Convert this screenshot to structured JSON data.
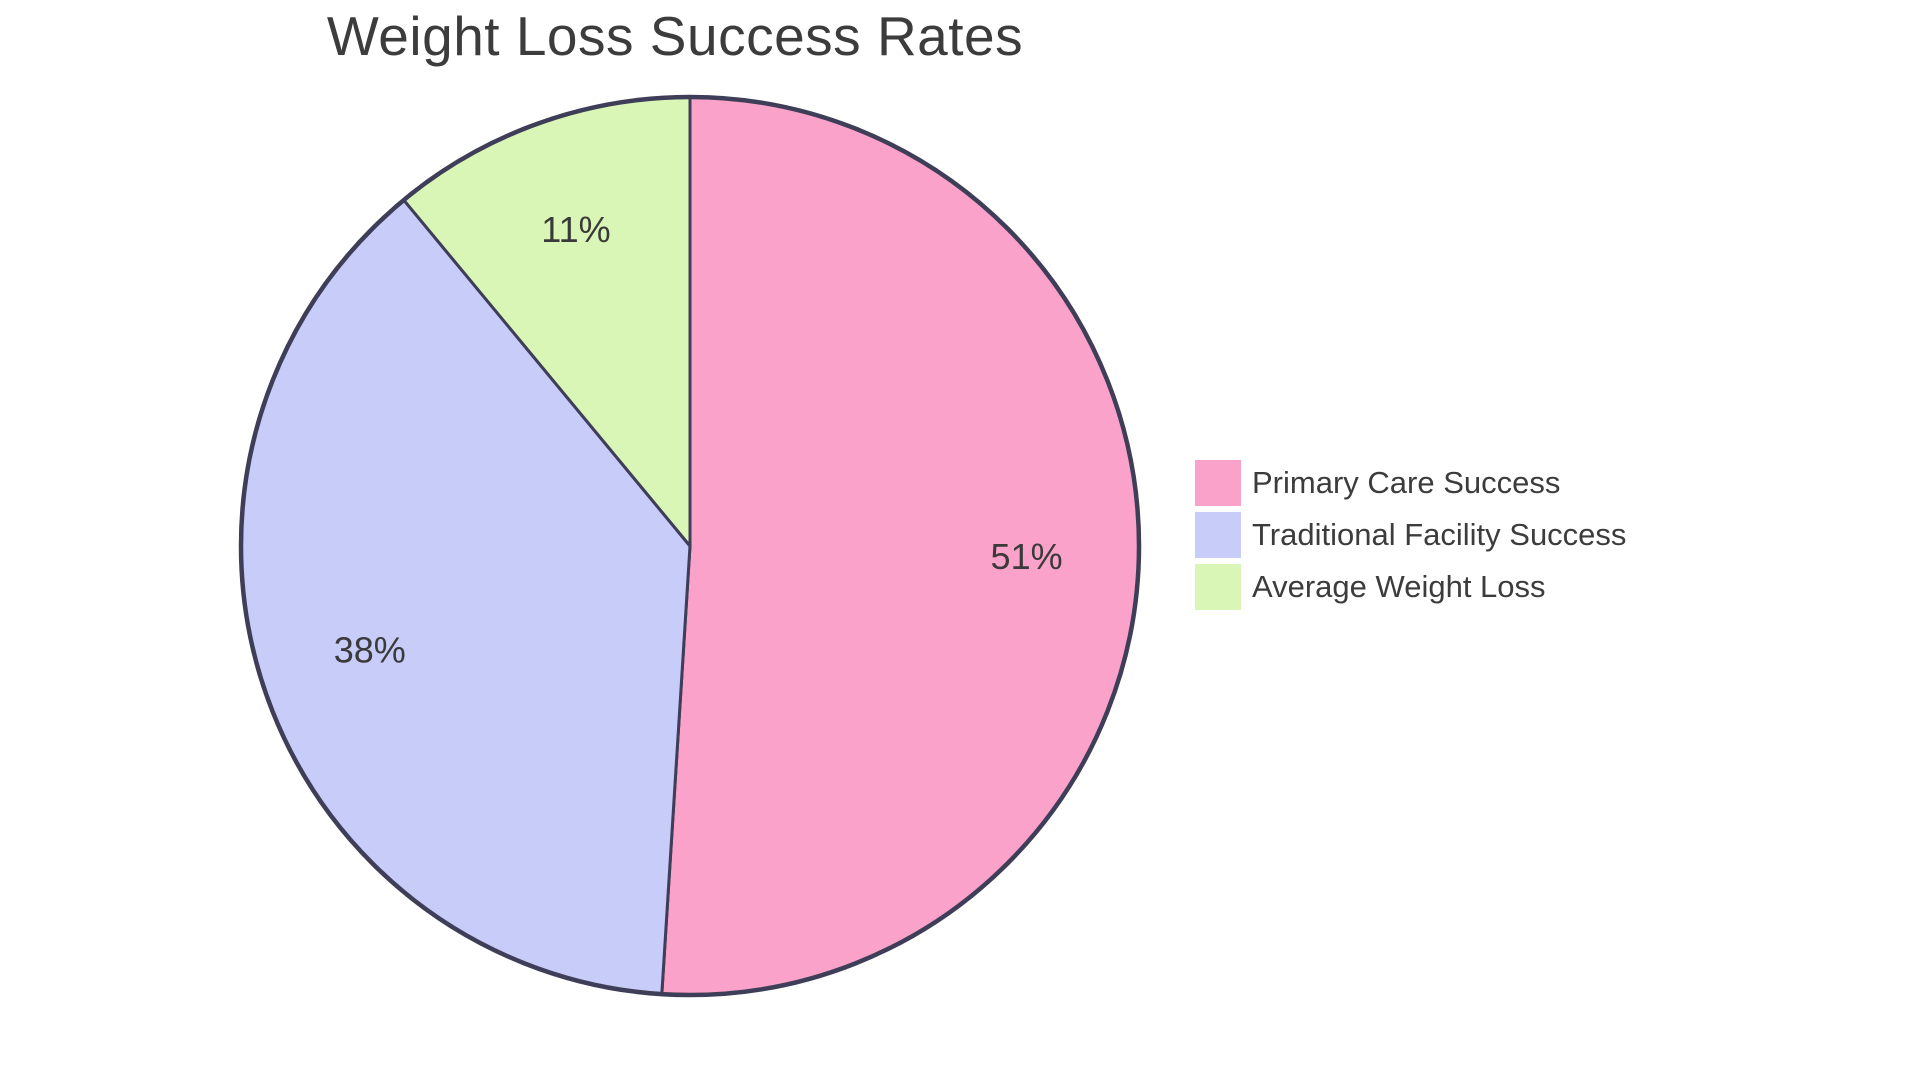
{
  "chart_data": {
    "type": "pie",
    "title": "Weight Loss Success Rates",
    "total": 100,
    "direction": "clockwise",
    "start_angle_deg": 0,
    "legend_position": "right",
    "background_color": "#ffffff",
    "border_color": "#3E3E58",
    "title_color": "#3C3C3C",
    "slice_label_color": "#3A3A3A",
    "legend_text_color": "#3C3C3C",
    "slices": [
      {
        "label": "Primary Care Success",
        "value": 51,
        "display": "51%",
        "color": "#FBA2CA"
      },
      {
        "label": "Traditional Facility Success",
        "value": 38,
        "display": "38%",
        "color": "#C8CCF8"
      },
      {
        "label": "Average Weight Loss",
        "value": 11,
        "display": "11%",
        "color": "#D9F6B6"
      }
    ]
  }
}
